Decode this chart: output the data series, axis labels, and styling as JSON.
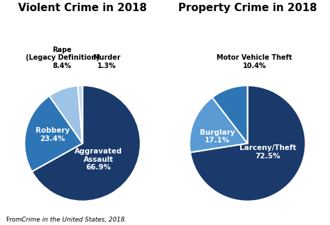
{
  "violent_title": "Violent Crime in 2018",
  "property_title": "Property Crime in 2018",
  "violent_values": [
    66.9,
    23.4,
    8.4,
    1.3
  ],
  "violent_colors": [
    "#1a3a6b",
    "#2e75b6",
    "#9dc3e6",
    "#bdd7ee"
  ],
  "property_values": [
    72.5,
    17.1,
    10.4
  ],
  "property_colors": [
    "#1a3a6b",
    "#5b9bd5",
    "#2e75b6"
  ],
  "footnote": "From ",
  "footnote_italic": "Crime in the United States, 2018.",
  "background_color": "#ffffff",
  "title_fontsize": 11,
  "label_fontsize_inside": 7.5,
  "label_fontsize_outside": 7
}
